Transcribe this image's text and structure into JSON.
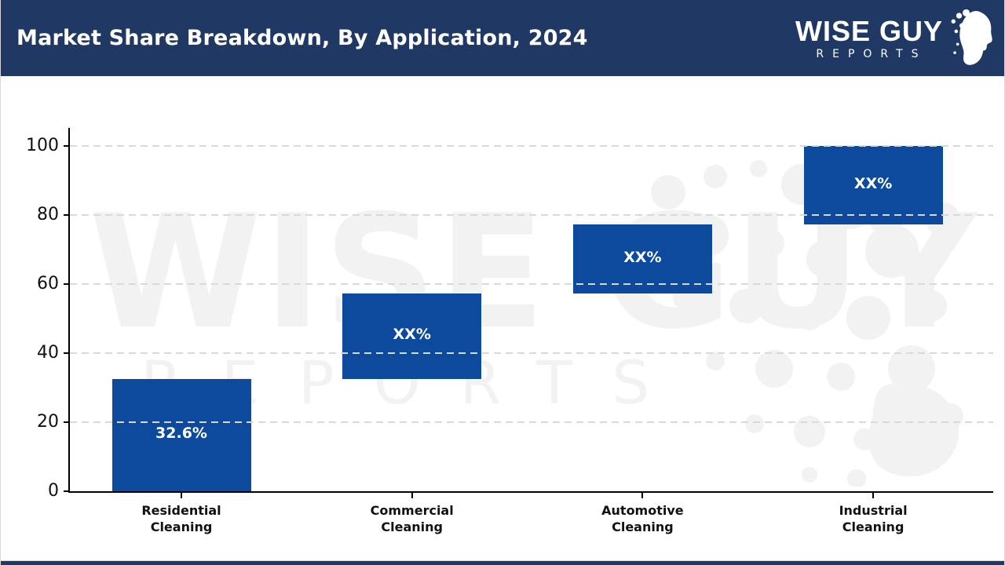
{
  "header": {
    "title": "Market Share Breakdown, By Application, 2024",
    "logo": {
      "wordmark": "WISE GUY",
      "wordmark_sub": "REPORTS"
    }
  },
  "watermark": {
    "line1": "WISE GUY",
    "line2": "REPORTS"
  },
  "colors": {
    "header_bg": "#1f3864",
    "footer_bg": "#1f3864",
    "bar_fill": "#0d4a9e",
    "bar_label_text": "#ffffff",
    "gridline": "#d9d9d9",
    "axis": "#000000",
    "tick_label_text": "#111111",
    "watermark": "#f2f2f2"
  },
  "chart_data": {
    "type": "bar",
    "subtype": "waterfall",
    "title": "Market Share Breakdown, By Application, 2024",
    "categories": [
      "Residential Cleaning",
      "Commercial Cleaning",
      "Automotive Cleaning",
      "Industrial Cleaning"
    ],
    "series": [
      {
        "name": "Market Share (%)",
        "segments": [
          {
            "category": "Residential Cleaning",
            "start": 0,
            "end": 32.6,
            "label": "32.6%"
          },
          {
            "category": "Commercial Cleaning",
            "start": 32.6,
            "end": 57.2,
            "label": "XX%"
          },
          {
            "category": "Automotive Cleaning",
            "start": 57.2,
            "end": 77.3,
            "label": "XX%"
          },
          {
            "category": "Industrial Cleaning",
            "start": 77.3,
            "end": 100,
            "label": "XX%"
          }
        ]
      }
    ],
    "xlabel": "",
    "ylabel": "",
    "ylim": [
      0,
      100
    ],
    "yticks": [
      0,
      20,
      40,
      60,
      80,
      100
    ],
    "grid": "horizontal-dashed",
    "legend": "none"
  }
}
